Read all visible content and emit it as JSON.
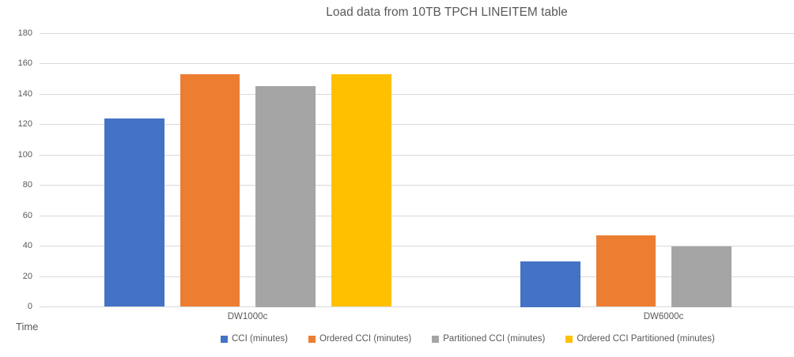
{
  "title": "Load data from 10TB TPCH LINEITEM table",
  "axis": {
    "x_title": "Time",
    "y_ticks": [
      180,
      160,
      140,
      120,
      100,
      80,
      60,
      40,
      20,
      0
    ]
  },
  "colors": {
    "gridline": "#d9d9d9",
    "text": "#595959"
  },
  "chart_data": {
    "type": "bar",
    "title": "Load data from 10TB TPCH LINEITEM table",
    "categories": [
      "DW1000c",
      "DW6000c"
    ],
    "series": [
      {
        "name": "CCI (minutes)",
        "color": "#4472C4",
        "values": [
          124,
          30
        ]
      },
      {
        "name": "Ordered CCI (minutes)",
        "color": "#ED7D31",
        "values": [
          153,
          47
        ]
      },
      {
        "name": "Partitioned CCI (minutes)",
        "color": "#A5A5A5",
        "values": [
          145,
          40
        ]
      },
      {
        "name": "Ordered CCI Partitioned (minutes)",
        "color": "#FFC000",
        "values": [
          153,
          null
        ]
      }
    ],
    "xlabel": "Time",
    "ylabel": "",
    "ylim": [
      0,
      180
    ],
    "y_tick_step": 20,
    "grid": true,
    "legend_position": "bottom"
  }
}
